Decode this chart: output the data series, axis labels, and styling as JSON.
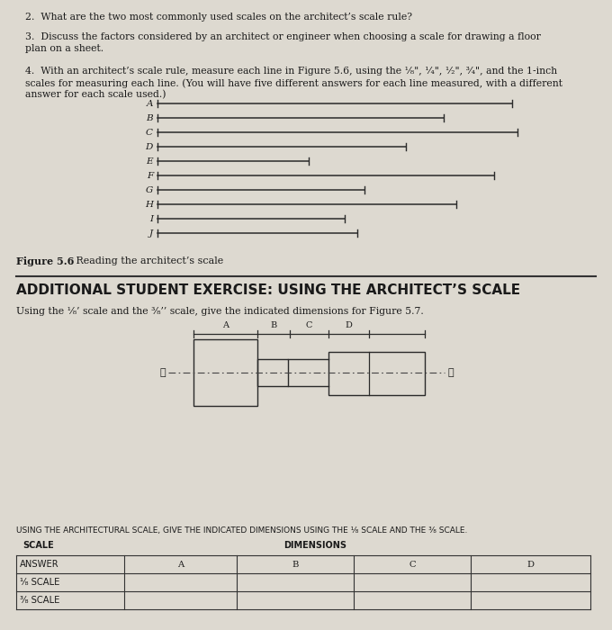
{
  "bg_color": "#ddd9d0",
  "text_color": "#1a1a1a",
  "q2_text": "2.  What are the two most commonly used scales on the architect’s scale rule?",
  "q3_line1": "3.  Discuss the factors considered by an architect or engineer when choosing a scale for drawing a floor",
  "q3_line2": "plan on a sheet.",
  "q4_line1": "4.  With an architect’s scale rule, measure each line in Figure 5.6, using the ¹⁄₈\", ¹⁄₄\", ¹⁄₂\", ³⁄₄\", and the 1-inch",
  "q4_line2": "scales for measuring each line. (You will have five different answers for each line measured, with a different",
  "q4_line3": "answer for each scale used.)",
  "line_labels": [
    "A",
    "B",
    "C",
    "D",
    "E",
    "F",
    "G",
    "H",
    "I",
    "J"
  ],
  "line_lengths": [
    0.985,
    0.795,
    1.0,
    0.69,
    0.42,
    0.935,
    0.575,
    0.83,
    0.52,
    0.555
  ],
  "fig56_caption_bold": "Figure 5.6",
  "fig56_caption_rest": "   Reading the architect’s scale",
  "section_title": "ADDITIONAL STUDENT EXERCISE: USING THE ARCHITECT’S SCALE",
  "exercise_text": "Using the ¹⁄₈’ scale and the ³⁄₈’’ scale, give the indicated dimensions for Figure 5.7.",
  "table_instruction": "USING THE ARCHITECTURAL SCALE, GIVE THE INDICATED DIMENSIONS USING THE ¹⁄₈ SCALE AND THE ³⁄₈ SCALE.",
  "table_header_scale": "SCALE",
  "table_header_dims": "DIMENSIONS",
  "table_row0": "ANSWER",
  "table_row1": "¹⁄₈ SCALE",
  "table_row2": "³⁄₈ SCALE",
  "table_cols": [
    "A",
    "B",
    "C",
    "D"
  ],
  "line_color": "#2a2a2a",
  "rule_color": "#333333"
}
